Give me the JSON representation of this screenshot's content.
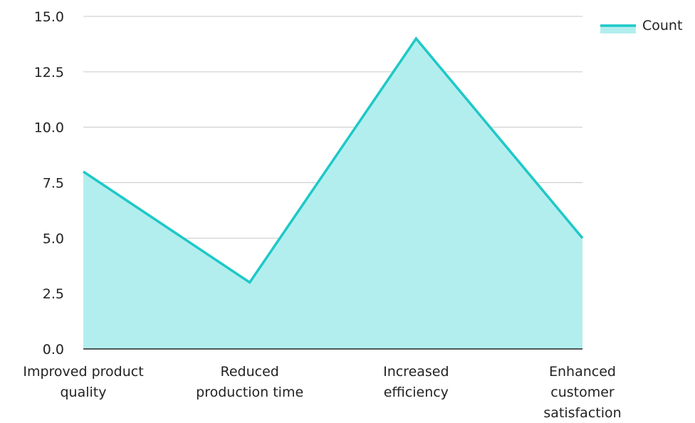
{
  "chart_data": {
    "type": "area",
    "categories": [
      [
        "Improved product",
        "quality"
      ],
      [
        "Reduced",
        "production time"
      ],
      [
        "Increased",
        "efficiency"
      ],
      [
        "Enhanced",
        "customer",
        "satisfaction"
      ]
    ],
    "series": [
      {
        "name": "Count",
        "values": [
          8,
          3,
          14,
          5
        ]
      }
    ],
    "ylim": [
      0,
      15
    ],
    "yticks": [
      "0.0",
      "2.5",
      "5.0",
      "7.5",
      "10.0",
      "12.5",
      "15.0"
    ],
    "grid": true,
    "legend_position": "top-right",
    "colors": {
      "line": "#1ec8c8",
      "fill": "#b3eeee",
      "grid": "#c8c8c8",
      "axis": "#222222"
    }
  }
}
